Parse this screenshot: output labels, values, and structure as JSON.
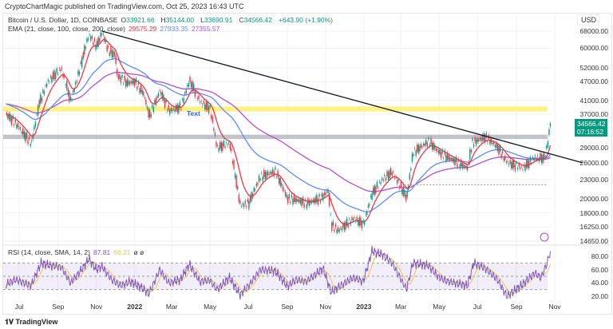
{
  "header": {
    "published": "CryptoChartMagic published on TradingView.com, Oct 25, 2023 16:43 UTC"
  },
  "legend": {
    "symbol": "Bitcoin / U.S. Dollar, 1D, COINBASE",
    "o_label": "O",
    "o": "33921.66",
    "h_label": "H",
    "h": "35144.00",
    "l_label": "L",
    "l": "33690.91",
    "c_label": "C",
    "c": "34566.42",
    "change": "+643.90 (+1.90%)",
    "ema_label": "EMA (21, close, 100, close, 200, close)",
    "ema21": "29575.29",
    "ema100": "27933.35",
    "ema200": "27355.57",
    "rsi_label": "RSI (14, close, SMA, 14, 2)",
    "rsi": "87.81",
    "rsi_sma": "66.21",
    "rsi_extra": "ø ø"
  },
  "axis": {
    "currency": "USD",
    "last_price": "34566.42",
    "countdown": "07:16:52"
  },
  "annotation": {
    "text": "Text"
  },
  "footer": {
    "brand": "TradingView"
  },
  "colors": {
    "up": "#089981",
    "down": "#f23645",
    "ema21": "#f23645",
    "ema100": "#5b8cff",
    "ema200": "#b04fd6",
    "rsi": "#7e57c2",
    "rsi_sma": "#e8c84a",
    "yellow_zone": "#fff176",
    "gray_zone": "#b2b5be",
    "trendline": "#131722"
  },
  "chart_data": [
    {
      "type": "line",
      "title": "Bitcoin / U.S. Dollar, 1D, COINBASE",
      "yscale": "log",
      "ylim": [
        14650,
        68000
      ],
      "y_ticks": [
        "68000.00",
        "60000.00",
        "52000.00",
        "47000.00",
        "41000.00",
        "37000.00",
        "29000.00",
        "26000.00",
        "23000.00",
        "20000.00",
        "18000.00",
        "16250.00",
        "14650.00"
      ],
      "x_ticks": [
        {
          "label": "Jul",
          "date": "2021-07-01"
        },
        {
          "label": "Sep",
          "date": "2021-09-01"
        },
        {
          "label": "Nov",
          "date": "2021-11-01"
        },
        {
          "label": "2022",
          "date": "2022-01-01"
        },
        {
          "label": "Mar",
          "date": "2022-03-01"
        },
        {
          "label": "May",
          "date": "2022-05-01"
        },
        {
          "label": "Jul",
          "date": "2022-07-01"
        },
        {
          "label": "Sep",
          "date": "2022-09-01"
        },
        {
          "label": "Nov",
          "date": "2022-11-01"
        },
        {
          "label": "2023",
          "date": "2023-01-01"
        },
        {
          "label": "Mar",
          "date": "2023-03-01"
        },
        {
          "label": "May",
          "date": "2023-05-01"
        },
        {
          "label": "Jul",
          "date": "2023-07-01"
        },
        {
          "label": "Sep",
          "date": "2023-09-01"
        },
        {
          "label": "Nov",
          "date": "2023-11-01"
        }
      ],
      "series": [
        {
          "name": "BTCUSD",
          "points": [
            [
              "2021-06-10",
              37000
            ],
            [
              "2021-06-20",
              35500
            ],
            [
              "2021-07-01",
              33500
            ],
            [
              "2021-07-20",
              29800
            ],
            [
              "2021-08-01",
              39800
            ],
            [
              "2021-08-15",
              47000
            ],
            [
              "2021-09-06",
              51800
            ],
            [
              "2021-09-21",
              40700
            ],
            [
              "2021-10-01",
              48000
            ],
            [
              "2021-10-15",
              61500
            ],
            [
              "2021-10-20",
              66000
            ],
            [
              "2021-11-01",
              61000
            ],
            [
              "2021-11-10",
              67500
            ],
            [
              "2021-11-20",
              59000
            ],
            [
              "2021-12-01",
              57000
            ],
            [
              "2021-12-04",
              49000
            ],
            [
              "2021-12-20",
              46500
            ],
            [
              "2022-01-01",
              47000
            ],
            [
              "2022-01-15",
              43000
            ],
            [
              "2022-01-24",
              36500
            ],
            [
              "2022-02-10",
              44000
            ],
            [
              "2022-02-24",
              38000
            ],
            [
              "2022-03-15",
              39000
            ],
            [
              "2022-03-29",
              47500
            ],
            [
              "2022-04-15",
              40500
            ],
            [
              "2022-05-01",
              38500
            ],
            [
              "2022-05-12",
              29000
            ],
            [
              "2022-06-01",
              30000
            ],
            [
              "2022-06-18",
              19000
            ],
            [
              "2022-07-01",
              19300
            ],
            [
              "2022-07-20",
              23500
            ],
            [
              "2022-08-13",
              24400
            ],
            [
              "2022-09-01",
              20000
            ],
            [
              "2022-09-15",
              19800
            ],
            [
              "2022-10-01",
              19300
            ],
            [
              "2022-10-25",
              20100
            ],
            [
              "2022-11-05",
              21300
            ],
            [
              "2022-11-10",
              16500
            ],
            [
              "2022-11-21",
              15800
            ],
            [
              "2022-12-15",
              17300
            ],
            [
              "2022-12-31",
              16600
            ],
            [
              "2023-01-14",
              20800
            ],
            [
              "2023-01-31",
              23100
            ],
            [
              "2023-02-15",
              24300
            ],
            [
              "2023-03-10",
              20100
            ],
            [
              "2023-03-20",
              28000
            ],
            [
              "2023-04-14",
              30400
            ],
            [
              "2023-05-01",
              28000
            ],
            [
              "2023-05-15",
              27000
            ],
            [
              "2023-06-15",
              25000
            ],
            [
              "2023-06-22",
              30000
            ],
            [
              "2023-07-13",
              31400
            ],
            [
              "2023-08-01",
              29200
            ],
            [
              "2023-08-17",
              26000
            ],
            [
              "2023-09-11",
              25000
            ],
            [
              "2023-09-30",
              27000
            ],
            [
              "2023-10-15",
              26900
            ],
            [
              "2023-10-20",
              29500
            ],
            [
              "2023-10-24",
              34000
            ],
            [
              "2023-10-25",
              34566.42
            ]
          ]
        }
      ],
      "zones": [
        {
          "name": "yellow",
          "from": 37800,
          "to": 39200
        },
        {
          "name": "gray",
          "from": 30900,
          "to": 31900
        }
      ],
      "trendline": [
        [
          "2021-11-10",
          68000
        ],
        [
          "2023-12-15",
          26000
        ]
      ],
      "hline": {
        "value": 22100,
        "from": "2023-03-01"
      }
    },
    {
      "type": "line",
      "title": "RSI (14, close, SMA, 14, 2)",
      "ylim": [
        15,
        92
      ],
      "y_ticks": [
        "80.00",
        "60.00",
        "40.00",
        "20.00"
      ],
      "bands": [
        30,
        50,
        70
      ],
      "series": [
        {
          "name": "RSI",
          "points": [
            [
              "2021-06-10",
              38
            ],
            [
              "2021-06-25",
              45
            ],
            [
              "2021-07-20",
              36
            ],
            [
              "2021-08-05",
              70
            ],
            [
              "2021-08-20",
              66
            ],
            [
              "2021-09-06",
              64
            ],
            [
              "2021-09-21",
              40
            ],
            [
              "2021-10-10",
              62
            ],
            [
              "2021-10-20",
              76
            ],
            [
              "2021-11-01",
              60
            ],
            [
              "2021-11-10",
              65
            ],
            [
              "2021-11-25",
              45
            ],
            [
              "2021-12-10",
              36
            ],
            [
              "2021-12-25",
              42
            ],
            [
              "2022-01-10",
              34
            ],
            [
              "2022-01-24",
              24
            ],
            [
              "2022-02-10",
              60
            ],
            [
              "2022-02-24",
              40
            ],
            [
              "2022-03-15",
              45
            ],
            [
              "2022-03-29",
              68
            ],
            [
              "2022-04-15",
              42
            ],
            [
              "2022-05-01",
              44
            ],
            [
              "2022-05-12",
              30
            ],
            [
              "2022-06-01",
              48
            ],
            [
              "2022-06-18",
              22
            ],
            [
              "2022-07-05",
              40
            ],
            [
              "2022-07-20",
              60
            ],
            [
              "2022-08-13",
              58
            ],
            [
              "2022-09-01",
              35
            ],
            [
              "2022-09-15",
              45
            ],
            [
              "2022-10-01",
              42
            ],
            [
              "2022-10-28",
              62
            ],
            [
              "2022-11-10",
              26
            ],
            [
              "2022-11-25",
              36
            ],
            [
              "2022-12-15",
              48
            ],
            [
              "2022-12-31",
              42
            ],
            [
              "2023-01-14",
              88
            ],
            [
              "2023-01-31",
              82
            ],
            [
              "2023-02-15",
              70
            ],
            [
              "2023-03-10",
              30
            ],
            [
              "2023-03-20",
              70
            ],
            [
              "2023-04-14",
              66
            ],
            [
              "2023-05-01",
              48
            ],
            [
              "2023-05-15",
              42
            ],
            [
              "2023-06-15",
              36
            ],
            [
              "2023-06-25",
              70
            ],
            [
              "2023-07-13",
              62
            ],
            [
              "2023-08-01",
              46
            ],
            [
              "2023-08-17",
              20
            ],
            [
              "2023-09-11",
              38
            ],
            [
              "2023-09-30",
              55
            ],
            [
              "2023-10-10",
              48
            ],
            [
              "2023-10-20",
              70
            ],
            [
              "2023-10-25",
              87.81
            ]
          ]
        }
      ]
    }
  ]
}
